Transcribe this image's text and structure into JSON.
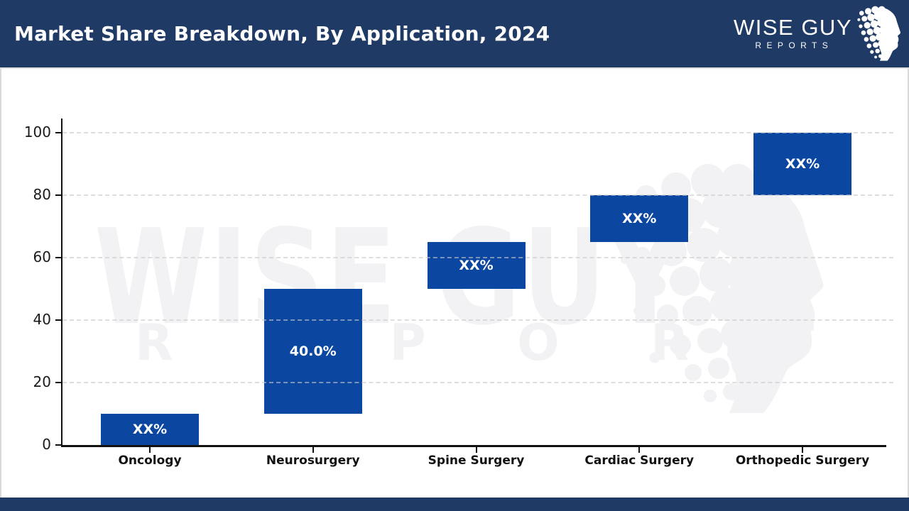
{
  "header": {
    "title": "Market Share Breakdown, By Application, 2024",
    "logo": {
      "brand": "WISE GUY",
      "sub": "REPORTS"
    }
  },
  "watermark": {
    "brand": "WISE GUY",
    "sub": "R E P O R T S"
  },
  "colors": {
    "header_bg": "#203a66",
    "footer_bg": "#203a66",
    "bar": "#0b47a1",
    "bar_label_text": "#ffffff",
    "gridline": "#d9d9d9",
    "axis": "#111111",
    "watermark": "#f2f2f4"
  },
  "chart_data": {
    "type": "bar",
    "variant": "waterfall",
    "title": "Market Share Breakdown, By Application, 2024",
    "categories": [
      "Oncology",
      "Neurosurgery",
      "Spine Surgery",
      "Cardiac Surgery",
      "Orthopedic Surgery"
    ],
    "segments": [
      {
        "category": "Oncology",
        "start": 0,
        "end": 10,
        "label": "XX%"
      },
      {
        "category": "Neurosurgery",
        "start": 10,
        "end": 50,
        "label": "40.0%"
      },
      {
        "category": "Spine Surgery",
        "start": 50,
        "end": 65,
        "label": "XX%"
      },
      {
        "category": "Cardiac Surgery",
        "start": 65,
        "end": 80,
        "label": "XX%"
      },
      {
        "category": "Orthopedic Surgery",
        "start": 80,
        "end": 100,
        "label": "XX%"
      }
    ],
    "yticks": [
      0,
      20,
      40,
      60,
      80,
      100
    ],
    "ylim": [
      0,
      105
    ],
    "xlabel": "",
    "ylabel": "",
    "grid": "horizontal-dashed",
    "legend": "none"
  }
}
